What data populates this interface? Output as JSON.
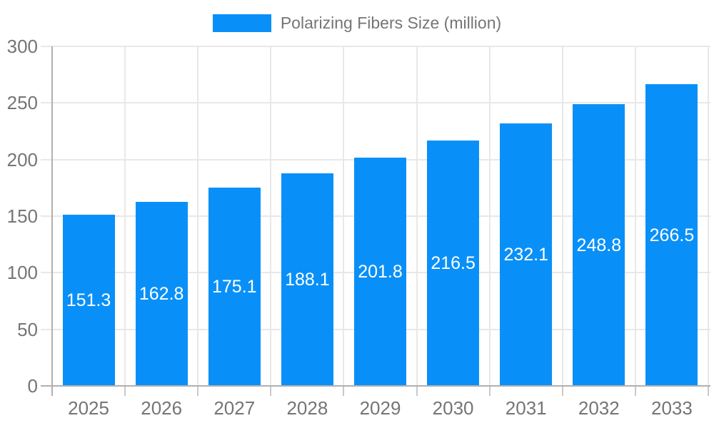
{
  "chart_data": {
    "type": "bar",
    "title": "",
    "legend": {
      "position": "top",
      "label": "Polarizing Fibers Size (million)"
    },
    "categories": [
      "2025",
      "2026",
      "2027",
      "2028",
      "2029",
      "2030",
      "2031",
      "2032",
      "2033"
    ],
    "series": [
      {
        "name": "Polarizing Fibers Size (million)",
        "values": [
          151.3,
          162.8,
          175.1,
          188.1,
          201.8,
          216.5,
          232.1,
          248.8,
          266.5
        ]
      }
    ],
    "value_labels_shown": true,
    "xlabel": "",
    "ylabel": "",
    "ylim": [
      0,
      300
    ],
    "yticks": [
      0,
      50,
      100,
      150,
      200,
      250,
      300
    ],
    "grid": true,
    "colors": {
      "bar": "#0990f8",
      "grid": "#e8e8e8",
      "axis": "#b0b0b0",
      "tick": "#c9c9c9",
      "axis_text": "#757575",
      "value_text": "#ffffff"
    }
  }
}
